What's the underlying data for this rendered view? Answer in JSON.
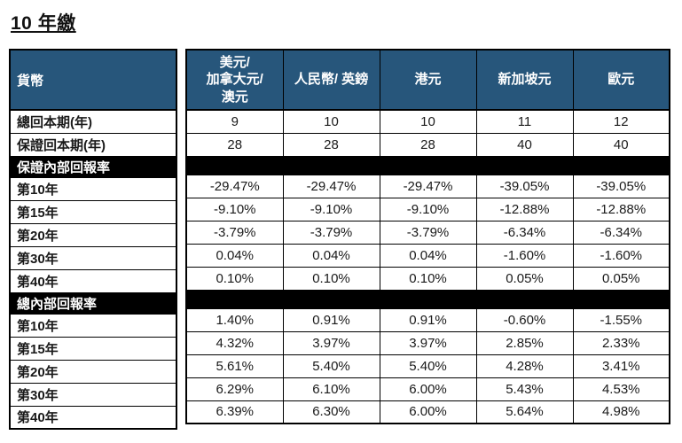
{
  "page": {
    "title": "10 年繳"
  },
  "colors": {
    "header_bg": "#27567b",
    "band_bg": "#000000",
    "border": "#000000",
    "header_text": "#ffffff",
    "cell_text": "#1a1a1a"
  },
  "table": {
    "corner_header": "貨幣",
    "column_headers": [
      "美元/\n加拿大元/\n澳元",
      "人民幣/ 英鎊",
      "港元",
      "新加坡元",
      "歐元"
    ],
    "sections": [
      {
        "type": "rows",
        "rows": [
          {
            "label": "總回本期(年)",
            "values": [
              "9",
              "10",
              "10",
              "11",
              "12"
            ]
          },
          {
            "label": "保證回本期(年)",
            "values": [
              "28",
              "28",
              "28",
              "40",
              "40"
            ]
          }
        ]
      },
      {
        "type": "band",
        "label": "保證內部回報率"
      },
      {
        "type": "rows",
        "rows": [
          {
            "label": "第10年",
            "values": [
              "-29.47%",
              "-29.47%",
              "-29.47%",
              "-39.05%",
              "-39.05%"
            ]
          },
          {
            "label": "第15年",
            "values": [
              "-9.10%",
              "-9.10%",
              "-9.10%",
              "-12.88%",
              "-12.88%"
            ]
          },
          {
            "label": "第20年",
            "values": [
              "-3.79%",
              "-3.79%",
              "-3.79%",
              "-6.34%",
              "-6.34%"
            ]
          },
          {
            "label": "第30年",
            "values": [
              "0.04%",
              "0.04%",
              "0.04%",
              "-1.60%",
              "-1.60%"
            ]
          },
          {
            "label": "第40年",
            "values": [
              "0.10%",
              "0.10%",
              "0.10%",
              "0.05%",
              "0.05%"
            ]
          }
        ]
      },
      {
        "type": "band",
        "label": "總內部回報率"
      },
      {
        "type": "rows",
        "rows": [
          {
            "label": "第10年",
            "values": [
              "1.40%",
              "0.91%",
              "0.91%",
              "-0.60%",
              "-1.55%"
            ]
          },
          {
            "label": "第15年",
            "values": [
              "4.32%",
              "3.97%",
              "3.97%",
              "2.85%",
              "2.33%"
            ]
          },
          {
            "label": "第20年",
            "values": [
              "5.61%",
              "5.40%",
              "5.40%",
              "4.28%",
              "3.41%"
            ]
          },
          {
            "label": "第30年",
            "values": [
              "6.29%",
              "6.10%",
              "6.00%",
              "5.43%",
              "4.53%"
            ]
          },
          {
            "label": "第40年",
            "values": [
              "6.39%",
              "6.30%",
              "6.00%",
              "5.64%",
              "4.98%"
            ]
          }
        ]
      }
    ]
  }
}
